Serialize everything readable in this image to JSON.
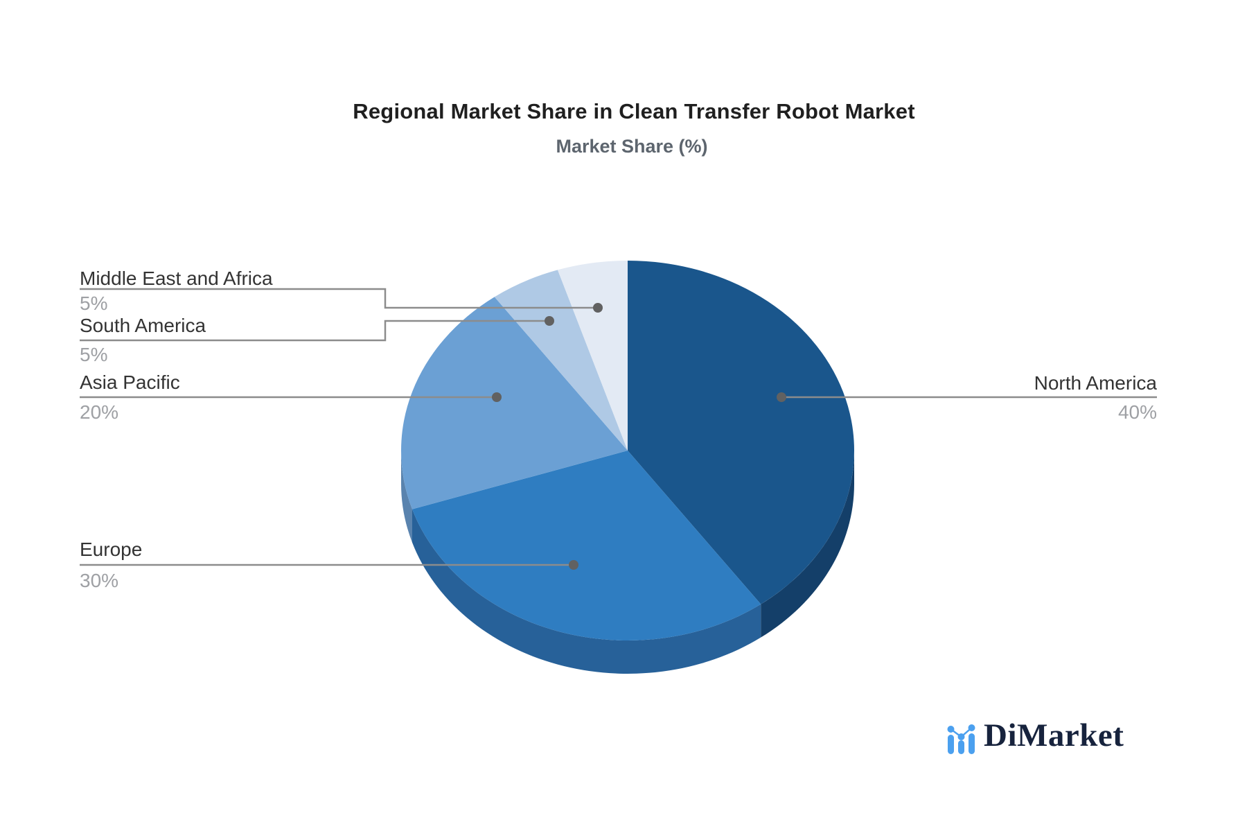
{
  "header": {
    "title": "Regional Market Share in Clean Transfer Robot Market",
    "subtitle": "Market Share (%)"
  },
  "chart_data": {
    "type": "pie",
    "style": "3d",
    "title": "Regional Market Share in Clean Transfer Robot Market",
    "subtitle": "Market Share (%)",
    "unit": "%",
    "start_angle_deg": 0,
    "clockwise": true,
    "legend": "none",
    "labels_position": "callout",
    "slices": [
      {
        "label": "North America",
        "value": 40,
        "display": "40%",
        "color": "#1A568C",
        "side_color": "#143F69"
      },
      {
        "label": "Europe",
        "value": 30,
        "display": "30%",
        "color": "#2F7DC1",
        "side_color": "#276199"
      },
      {
        "label": "Asia Pacific",
        "value": 20,
        "display": "20%",
        "color": "#6BA0D4",
        "side_color": "#5983AE"
      },
      {
        "label": "South America",
        "value": 5,
        "display": "5%",
        "color": "#AFC9E5",
        "side_color": "#8FA9C2"
      },
      {
        "label": "Middle East and Africa",
        "value": 5,
        "display": "5%",
        "color": "#E3EAF4",
        "side_color": "#BAC4D1"
      }
    ],
    "callout_line_color": "#8c8c8c",
    "callout_dot_color": "#616161"
  },
  "logo": {
    "text": "DiMarket",
    "icon": "bar-chart-logo-icon",
    "icon_color": "#4BA0EF",
    "text_color": "#17233d"
  }
}
